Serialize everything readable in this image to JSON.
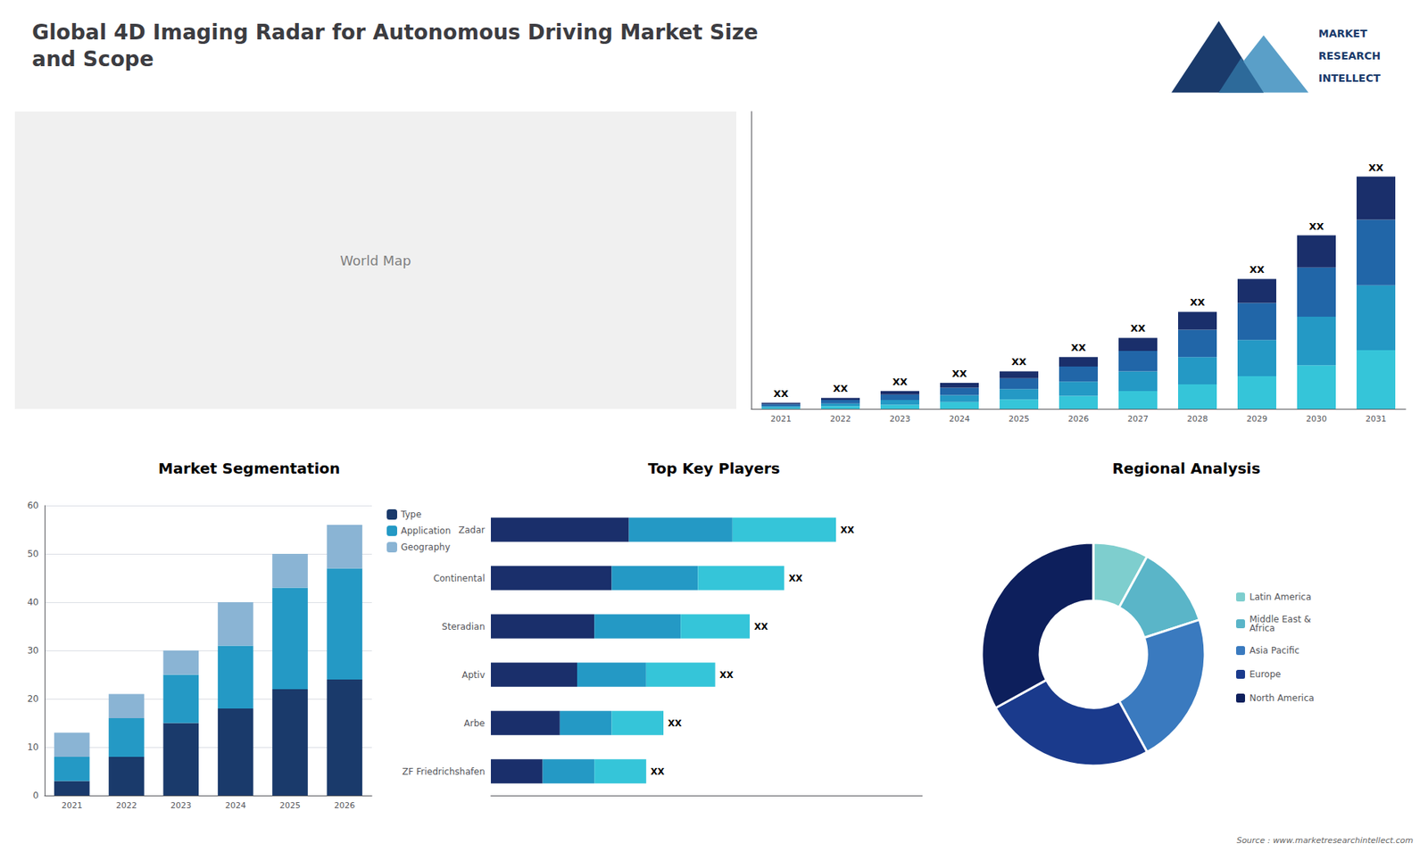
{
  "title": "Global 4D Imaging Radar for Autonomous Driving Market Size\nand Scope",
  "annotations": [
    "World Map",
    "MARKET",
    "RESEARCH",
    "INTELLECT",
    "Source : www.marketresearchintellect.com"
  ],
  "chart_data": [
    {
      "type": "bar",
      "stacked": true,
      "categories": [
        "2021",
        "2022",
        "2023",
        "2024",
        "2025",
        "2026",
        "2027",
        "2028",
        "2029",
        "2030",
        "2031"
      ],
      "series": [
        {
          "color": "#35c5d9",
          "values": [
            2,
            4,
            6,
            10,
            14,
            19,
            26,
            36,
            48,
            64,
            86
          ]
        },
        {
          "color": "#2499c5",
          "values": [
            2,
            4,
            7,
            10,
            15,
            21,
            29,
            40,
            53,
            71,
            95
          ]
        },
        {
          "color": "#2166a8",
          "values": [
            3,
            5,
            8,
            11,
            16,
            22,
            30,
            40,
            54,
            72,
            96
          ]
        },
        {
          "color": "#1a2f6b",
          "values": [
            2,
            3,
            5,
            7,
            10,
            14,
            19,
            26,
            35,
            47,
            63
          ]
        }
      ],
      "annotations": [
        "XX",
        "XX",
        "XX",
        "XX",
        "XX",
        "XX",
        "XX",
        "XX",
        "XX",
        "XX",
        "XX"
      ],
      "ylim": [
        0,
        435.2
      ],
      "tick_labels": "x",
      "grid": false
    },
    {
      "type": "bar",
      "title": "Market Segmentation",
      "stacked": true,
      "categories": [
        "2021",
        "2022",
        "2023",
        "2024",
        "2025",
        "2026"
      ],
      "series": [
        {
          "name": "Type",
          "color": "#1a3a6b",
          "values": [
            3,
            8,
            15,
            18,
            22,
            24
          ]
        },
        {
          "name": "Application",
          "color": "#2499c5",
          "values": [
            5,
            8,
            10,
            13,
            21,
            23
          ]
        },
        {
          "name": "Geography",
          "color": "#8ab4d4",
          "values": [
            5,
            5,
            5,
            9,
            7,
            9
          ]
        }
      ],
      "ylim": [
        0,
        60
      ],
      "yticks": [
        0,
        10,
        20,
        30,
        40,
        50,
        60
      ],
      "grid": true,
      "legend": "upper right"
    },
    {
      "type": "bar",
      "title": "Top Key Players",
      "orientation": "horizontal",
      "stacked": true,
      "categories": [
        "Zadar",
        "Continental",
        "Steradian",
        "Aptiv",
        "Arbe",
        "ZF Friedrichshafen"
      ],
      "series": [
        {
          "color": "#1a2f6b",
          "values": [
            4,
            3.5,
            3,
            2.5,
            2,
            1.5
          ]
        },
        {
          "color": "#2499c5",
          "values": [
            3,
            2.5,
            2.5,
            2,
            1.5,
            1.5
          ]
        },
        {
          "color": "#35c5d9",
          "values": [
            3,
            2.5,
            2,
            2,
            1.5,
            1.5
          ]
        }
      ],
      "annotations": [
        "XX",
        "XX",
        "XX",
        "XX",
        "XX",
        "XX"
      ],
      "xlim": [
        0,
        12.5
      ],
      "tick_labels": "y",
      "grid": false
    },
    {
      "type": "pie",
      "title": "Regional Analysis",
      "categories": [
        "Latin America",
        "Middle East &\nAfrica",
        "Asia Pacific",
        "Europe",
        "North America"
      ],
      "values": [
        8,
        12,
        22,
        25,
        33
      ],
      "colors": [
        "#7ecece",
        "#5ab5c8",
        "#3a7abf",
        "#1a3a8c",
        "#0d1f5c"
      ],
      "legend": "right"
    }
  ]
}
